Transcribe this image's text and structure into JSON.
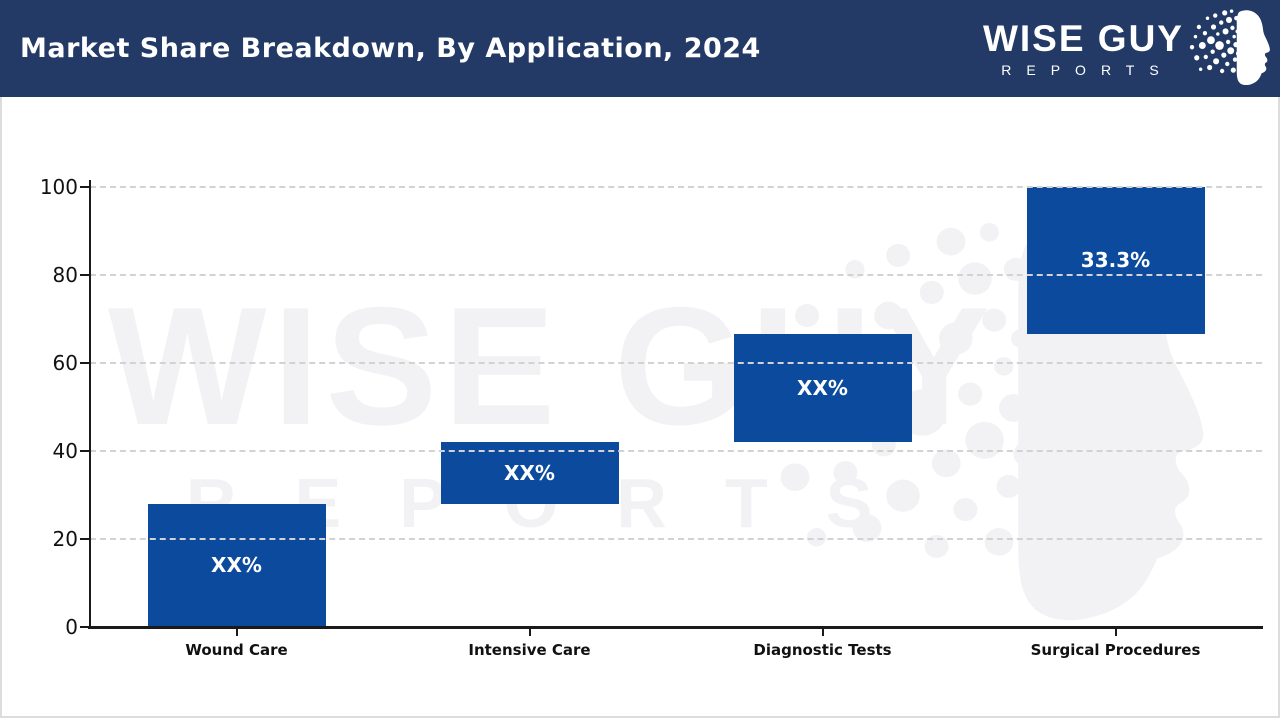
{
  "header": {
    "title": "Market Share Breakdown, By Application, 2024",
    "logo": {
      "line1": "WISE GUY",
      "line2": "REPORTS",
      "icon": "dotted-head-profile-icon"
    }
  },
  "colors": {
    "header_background": "#223A65",
    "bar_blue": "#0C4A9E",
    "bar_label_text": "#FFFFFF",
    "gridline": "#D2D2D2",
    "axis": "#1A1A1A",
    "watermark": "#F2F2F5",
    "title_text": "#FFFFFF"
  },
  "watermark": {
    "line1": "WISE GUY",
    "line2": "REPORTS"
  },
  "chart_data": {
    "type": "bar",
    "subtype": "waterfall",
    "title": "Market Share Breakdown, By Application, 2024",
    "xlabel": "",
    "ylabel": "",
    "categories": [
      "Wound Care",
      "Intensive Care",
      "Diagnostic Tests",
      "Surgical Procedures"
    ],
    "segments": [
      {
        "category": "Wound Care",
        "start": 0,
        "end": 28,
        "label": "XX%"
      },
      {
        "category": "Intensive Care",
        "start": 28,
        "end": 42,
        "label": "XX%"
      },
      {
        "category": "Diagnostic Tests",
        "start": 42,
        "end": 66.7,
        "label": "XX%"
      },
      {
        "category": "Surgical Procedures",
        "start": 66.7,
        "end": 100,
        "label": "33.3%"
      }
    ],
    "ylim": [
      0,
      100
    ],
    "yticks": [
      0,
      20,
      40,
      60,
      80,
      100
    ],
    "grid": "horizontal-dashed",
    "legend": "none"
  }
}
